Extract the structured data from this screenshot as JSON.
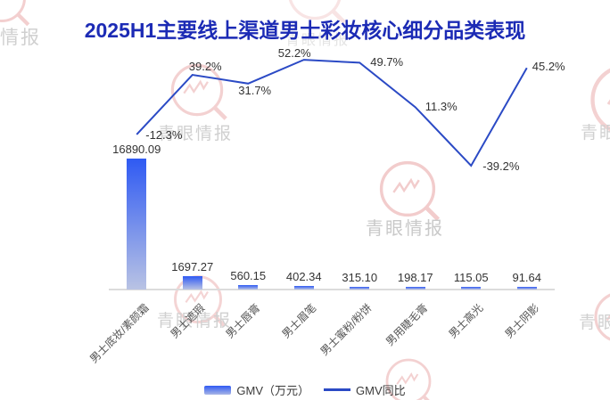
{
  "title": {
    "text": "2025H1主要线上渠道男士彩妆核心细分品类表现",
    "color": "#1c2bb5"
  },
  "chart_data": {
    "type": "bar",
    "combo": "bar+line",
    "title": "2025H1主要线上渠道男士彩妆核心细分品类表现",
    "categories": [
      "男士底妆/素颜霜",
      "男士遮瑕",
      "男士唇膏",
      "男士眉笔",
      "男士蜜粉/粉饼",
      "男用睫毛膏",
      "男士高光",
      "男士阴影"
    ],
    "series": [
      {
        "name": "GMV（万元）",
        "type": "bar",
        "values": [
          16890.09,
          1697.27,
          560.15,
          402.34,
          315.1,
          198.17,
          115.05,
          91.64
        ]
      },
      {
        "name": "GMV同比",
        "type": "line",
        "unit": "%",
        "values": [
          -12.3,
          39.2,
          31.7,
          52.2,
          49.7,
          11.3,
          -39.2,
          45.2
        ]
      }
    ],
    "xlabel": "",
    "ylabel": "",
    "grid": false,
    "legend_position": "bottom",
    "x_axis_label_rotation": 45
  },
  "legend": {
    "bar_label": "GMV（万元）",
    "line_label": "GMV同比"
  },
  "watermark": {
    "logo_text": "青眼情报",
    "partial_text": "情报"
  },
  "colors": {
    "title": "#1c2bb5",
    "bar_top": "#2f5af3",
    "bar_bottom": "#b9c3e4",
    "line": "#2b4ac5",
    "data_label": "#333333",
    "axis": "#dcdcdc",
    "category_label": "#555555",
    "watermark_pink": "#f2caca",
    "watermark_gray": "#d0d0d0"
  }
}
